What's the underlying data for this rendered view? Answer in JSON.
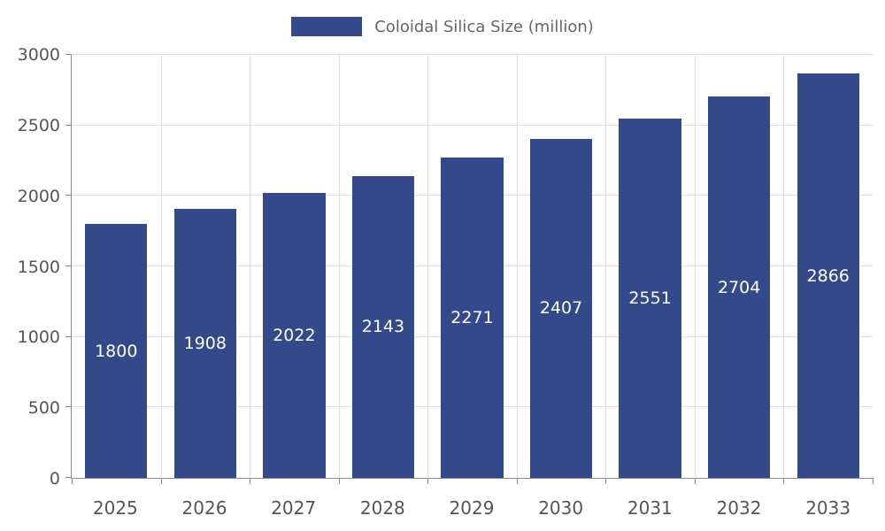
{
  "legend": {
    "label": "Coloidal Silica Size (million)"
  },
  "colors": {
    "bar": "#33498a",
    "axis": "#8a8a8a",
    "grid": "#e0e0e0",
    "tick_text": "#555555",
    "legend_text": "#666666",
    "bar_label": "#ffffff"
  },
  "chart_data": {
    "type": "bar",
    "title": "Coloidal Silica Size (million)",
    "categories": [
      "2025",
      "2026",
      "2027",
      "2028",
      "2029",
      "2030",
      "2031",
      "2032",
      "2033"
    ],
    "series": [
      {
        "name": "Coloidal Silica Size (million)",
        "values": [
          1800,
          1908,
          2022,
          2143,
          2271,
          2407,
          2551,
          2704,
          2866
        ]
      }
    ],
    "xlabel": "",
    "ylabel": "",
    "ylim": [
      0,
      3000
    ],
    "yticks": [
      0,
      500,
      1000,
      1500,
      2000,
      2500,
      3000
    ],
    "grid": true,
    "legend_position": "top",
    "value_labels": "inside-center"
  }
}
